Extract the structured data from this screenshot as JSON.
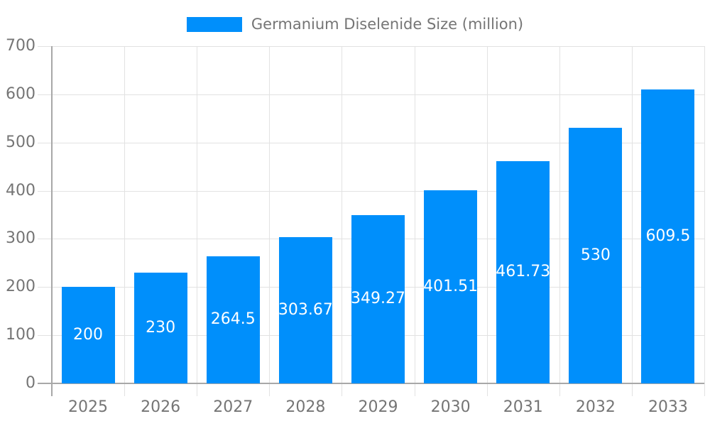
{
  "legend": {
    "label": "Germanium Diselenide Size (million)"
  },
  "colors": {
    "bar": "#008FFB",
    "grid": "#E2E2E2",
    "axis": "#A8A8A8",
    "text": "#757575",
    "value_label": "#FFFFFF",
    "background": "#FFFFFF"
  },
  "chart_data": {
    "type": "bar",
    "title": "Germanium Diselenide Size (million)",
    "series_name": "Germanium Diselenide Size (million)",
    "categories": [
      "2025",
      "2026",
      "2027",
      "2028",
      "2029",
      "2030",
      "2031",
      "2032",
      "2033"
    ],
    "values": [
      200,
      230,
      264.5,
      303.67,
      349.27,
      401.51,
      461.73,
      530,
      609.5
    ],
    "xlabel": "",
    "ylabel": "",
    "ylim": [
      0,
      700
    ],
    "ytick_step": 100,
    "yticks": [
      0,
      100,
      200,
      300,
      400,
      500,
      600,
      700
    ],
    "grid": true,
    "legend_position": "top",
    "value_labels": "inside-center"
  }
}
